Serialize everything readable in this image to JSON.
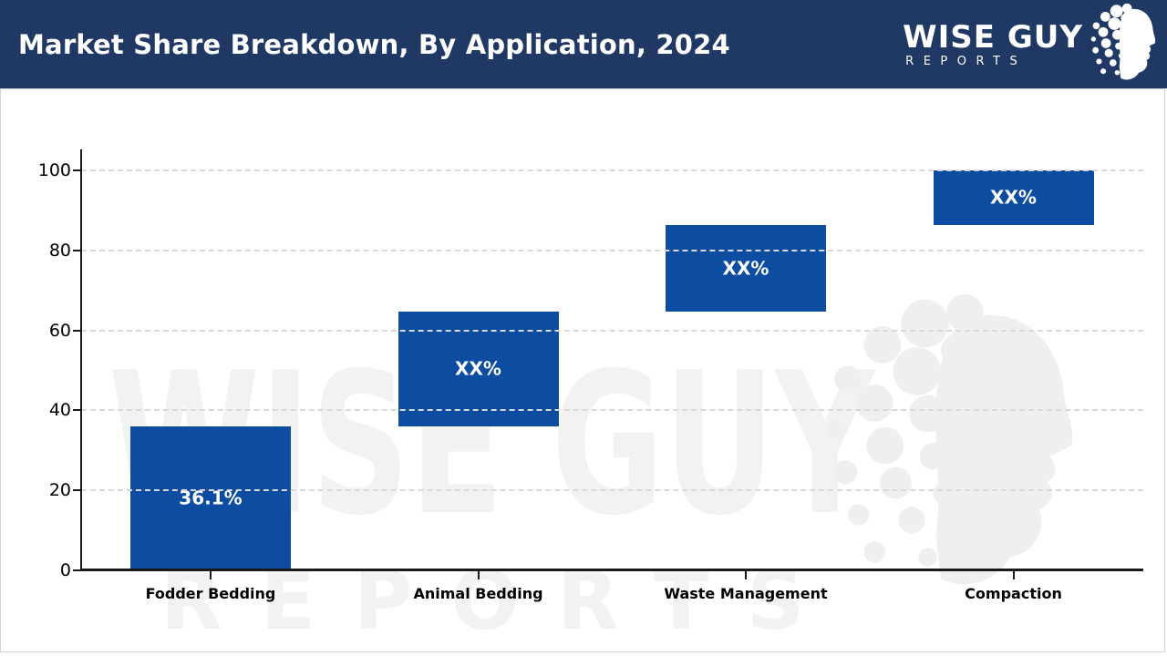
{
  "header": {
    "title": "Market Share Breakdown, By Application, 2024",
    "logo": {
      "line1": "WISE GUY",
      "line2": "REPORTS"
    },
    "bg_color": "#1f3864"
  },
  "watermark": {
    "line1": "WISE GUY",
    "line2": "REPORTS"
  },
  "colors": {
    "header_bg": "#1f3864",
    "bar": "#0c4da2",
    "bar_label": "#ffffff",
    "gridline": "#d9d9d9",
    "axis": "#1a1a1a",
    "watermark": "#f2f2f2",
    "body_border": "#d6d6d6"
  },
  "chart_data": {
    "type": "bar",
    "subtype": "waterfall",
    "title": "Market Share Breakdown, By Application, 2024",
    "categories": [
      "Fodder Bedding",
      "Animal Bedding",
      "Waste Management",
      "Compaction"
    ],
    "segments": [
      {
        "category": "Fodder Bedding",
        "start": 0,
        "end": 36.1,
        "label": "36.1%"
      },
      {
        "category": "Animal Bedding",
        "start": 36.1,
        "end": 64.6,
        "label": "XX%"
      },
      {
        "category": "Waste Management",
        "start": 64.6,
        "end": 86.3,
        "label": "XX%"
      },
      {
        "category": "Compaction",
        "start": 86.3,
        "end": 100,
        "label": "XX%"
      }
    ],
    "yticks": [
      0,
      20,
      40,
      60,
      80,
      100
    ],
    "ylim": [
      0,
      100
    ],
    "xlabel": "",
    "ylabel": "",
    "grid": "dashed horizontal, drawn over bars",
    "legend": "none"
  }
}
